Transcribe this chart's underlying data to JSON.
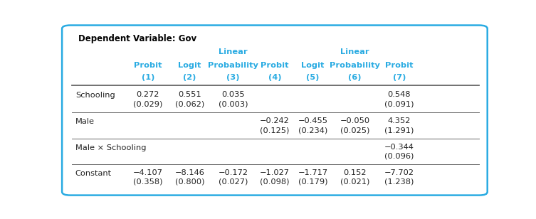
{
  "title": "Dependent Variable: Gov",
  "col_names": [
    "Probit",
    "Logit",
    "Linear\nProbability",
    "Probit",
    "Logit",
    "Linear\nProbability",
    "Probit"
  ],
  "col_nums": [
    "(1)",
    "(2)",
    "(3)",
    "(4)",
    "(5)",
    "(6)",
    "(7)"
  ],
  "rows": [
    {
      "label": "Schooling",
      "values": [
        "0.272\n(0.029)",
        "0.551\n(0.062)",
        "0.035\n(0.003)",
        "",
        "",
        "",
        "0.548\n(0.091)"
      ]
    },
    {
      "label": "Male",
      "values": [
        "",
        "",
        "",
        "−0.242\n(0.125)",
        "−0.455\n(0.234)",
        "−0.050\n(0.025)",
        "4.352\n(1.291)"
      ]
    },
    {
      "label": "Male × Schooling",
      "values": [
        "",
        "",
        "",
        "",
        "",
        "",
        "−0.344\n(0.096)"
      ]
    },
    {
      "label": "Constant",
      "values": [
        "−4.107\n(0.358)",
        "−8.146\n(0.800)",
        "−0.172\n(0.027)",
        "−1.027\n(0.098)",
        "−1.717\n(0.179)",
        "0.152\n(0.021)",
        "−7.702\n(1.238)"
      ]
    }
  ],
  "header_color": "#29abe2",
  "title_color": "#000000",
  "text_color": "#222222",
  "bg_color": "#ffffff",
  "border_color": "#29abe2",
  "line_color": "#666666",
  "fig_width": 7.53,
  "fig_height": 3.08,
  "dpi": 100
}
